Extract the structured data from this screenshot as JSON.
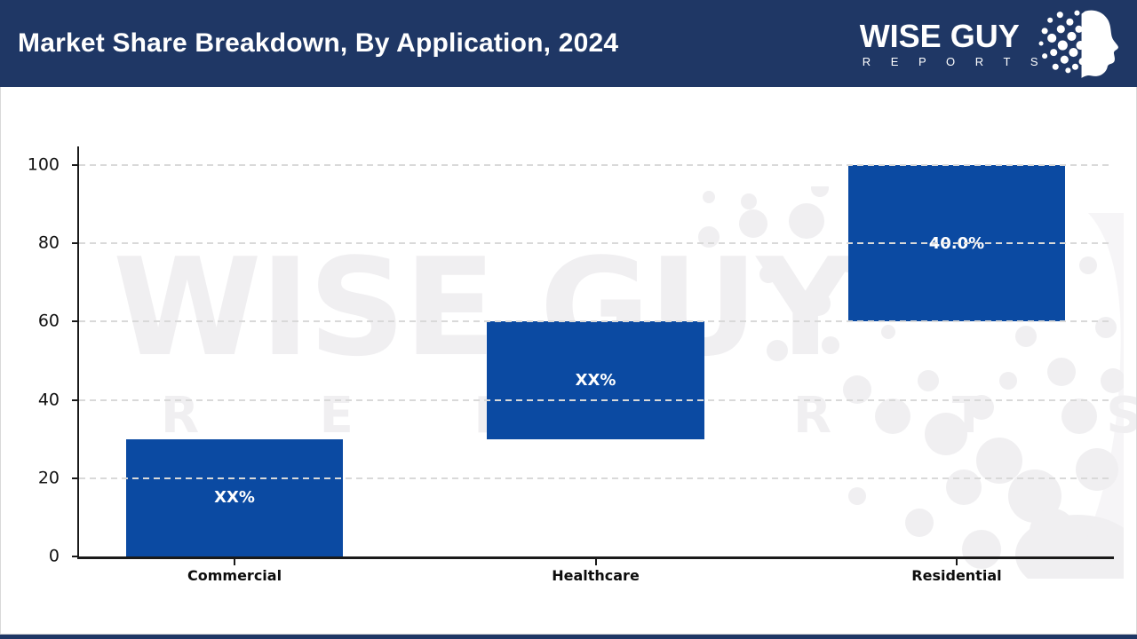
{
  "header": {
    "title": "Market Share Breakdown, By Application, 2024",
    "logo": {
      "name": "WISE GUY",
      "sub": "R E P O R T S"
    }
  },
  "watermark": {
    "line1": "WISE GUY",
    "line2": "R E P O R T S"
  },
  "colors": {
    "header_bg": "#1f3765",
    "footer_bg": "#1f3765",
    "bar": "#0b4aa2",
    "bar_label": "#ffffff",
    "gridline": "#d9d9d9",
    "axis": "#1a1a1a",
    "watermark": "#f0eff1"
  },
  "chart_data": {
    "type": "bar",
    "subtype": "floating-range-bars",
    "title": "Market Share Breakdown, By Application, 2024",
    "categories": [
      "Commercial",
      "Healthcare",
      "Residential"
    ],
    "bars": [
      {
        "category": "Commercial",
        "start": 0,
        "end": 30,
        "label": "XX%"
      },
      {
        "category": "Healthcare",
        "start": 30,
        "end": 60,
        "label": "XX%"
      },
      {
        "category": "Residential",
        "start": 60,
        "end": 100,
        "label": "40.0%"
      }
    ],
    "ylim": [
      0,
      100
    ],
    "yticks": [
      0,
      20,
      40,
      60,
      80,
      100
    ],
    "xlabel": "",
    "ylabel": "",
    "grid": "horizontal-dashed-over-bars",
    "legend": "none",
    "layout": {
      "bar_center_fractions": [
        0.1505,
        0.5,
        0.8495
      ],
      "bar_width_fraction": 0.21
    }
  }
}
